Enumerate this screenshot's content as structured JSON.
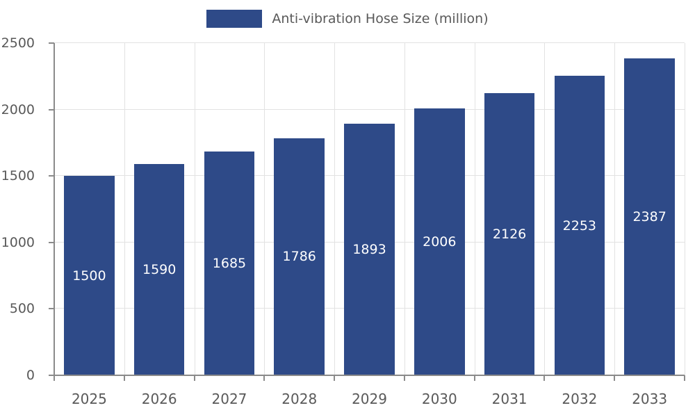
{
  "chart_data": {
    "type": "bar",
    "title": "Anti-vibration Hose Size (million)",
    "categories": [
      "2025",
      "2026",
      "2027",
      "2028",
      "2029",
      "2030",
      "2031",
      "2032",
      "2033"
    ],
    "values": [
      1500,
      1590,
      1685,
      1786,
      1893,
      2006,
      2126,
      2253,
      2387
    ],
    "series": [
      {
        "name": "Anti-vibration Hose Size (million)",
        "values": [
          1500,
          1590,
          1685,
          1786,
          1893,
          2006,
          2126,
          2253,
          2387
        ]
      }
    ],
    "xlabel": "",
    "ylabel": "",
    "ylim": [
      0,
      2500
    ],
    "y_ticks": [
      0,
      500,
      1000,
      1500,
      2000,
      2500
    ],
    "grid": true,
    "legend_position": "top",
    "value_labels": "inside-center",
    "colors": {
      "bar": "#2e4a88",
      "bar_label": "#ffffff",
      "axis_text": "#595959",
      "axis_line": "#8a8a8a",
      "gridline": "#e2e2e2",
      "background": "#ffffff"
    }
  }
}
